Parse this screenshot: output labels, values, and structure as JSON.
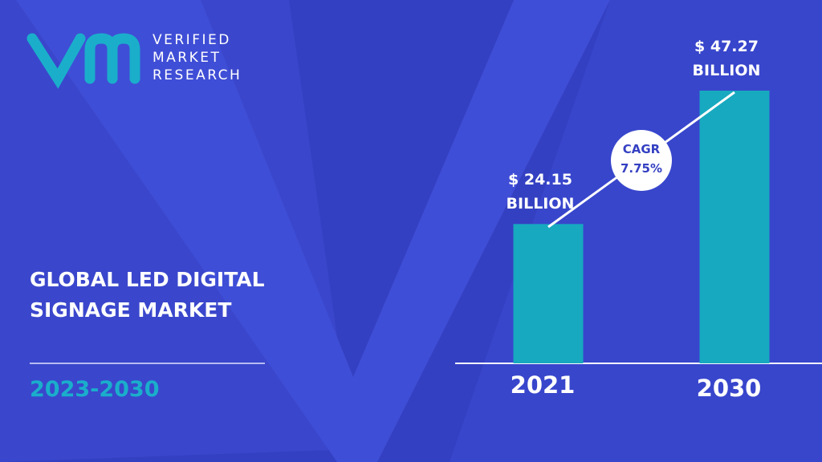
{
  "logo": {
    "lines": [
      "VERIFIED",
      "MARKET",
      "RESEARCH"
    ]
  },
  "chart_data": {
    "type": "bar",
    "title": "GLOBAL LED DIGITAL SIGNAGE MARKET",
    "subtitle": "2023-2030",
    "categories": [
      "2021",
      "2030"
    ],
    "values": [
      24.15,
      47.27
    ],
    "value_labels": [
      "$ 24.15 BILLION",
      "$ 47.27 BILLION"
    ],
    "annotation": "CAGR 7.75%",
    "color": "#17a9bf"
  }
}
